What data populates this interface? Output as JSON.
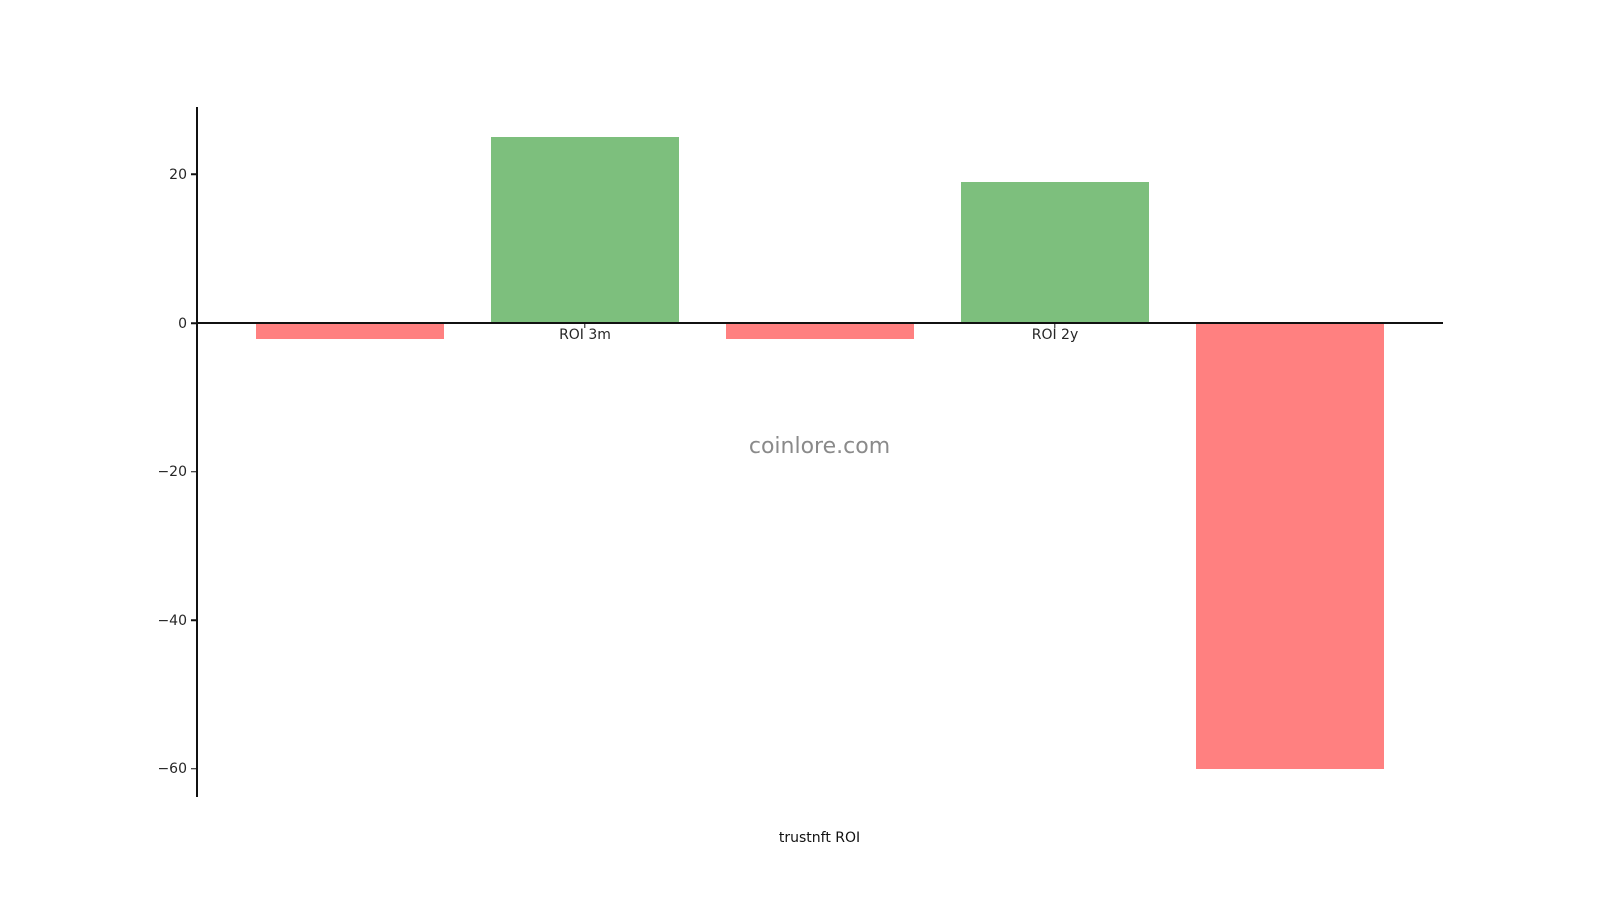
{
  "chart_data": {
    "type": "bar",
    "title": "",
    "categories": [
      "",
      "ROI 3m",
      "",
      "ROI 2y",
      ""
    ],
    "values": [
      -2.2,
      25,
      -2.2,
      19,
      -60
    ],
    "bar_colors": [
      "#ff8080",
      "#7dbf7d",
      "#ff8080",
      "#7dbf7d",
      "#ff8080"
    ],
    "positive_color": "#7dbf7d",
    "negative_color": "#ff8080",
    "xlabel": "trustnft ROI",
    "ylabel": "",
    "yticks": [
      20,
      0,
      -20,
      -40,
      -60
    ],
    "ytick_labels": [
      "20",
      "0",
      "−20",
      "−40",
      "−60"
    ],
    "ylim": [
      -64,
      29
    ],
    "grid": false,
    "legend": false,
    "axis_color": "#111111",
    "text_color": "#262626",
    "watermark": {
      "text": "coinlore.com",
      "color": "#8a8a8a"
    }
  }
}
